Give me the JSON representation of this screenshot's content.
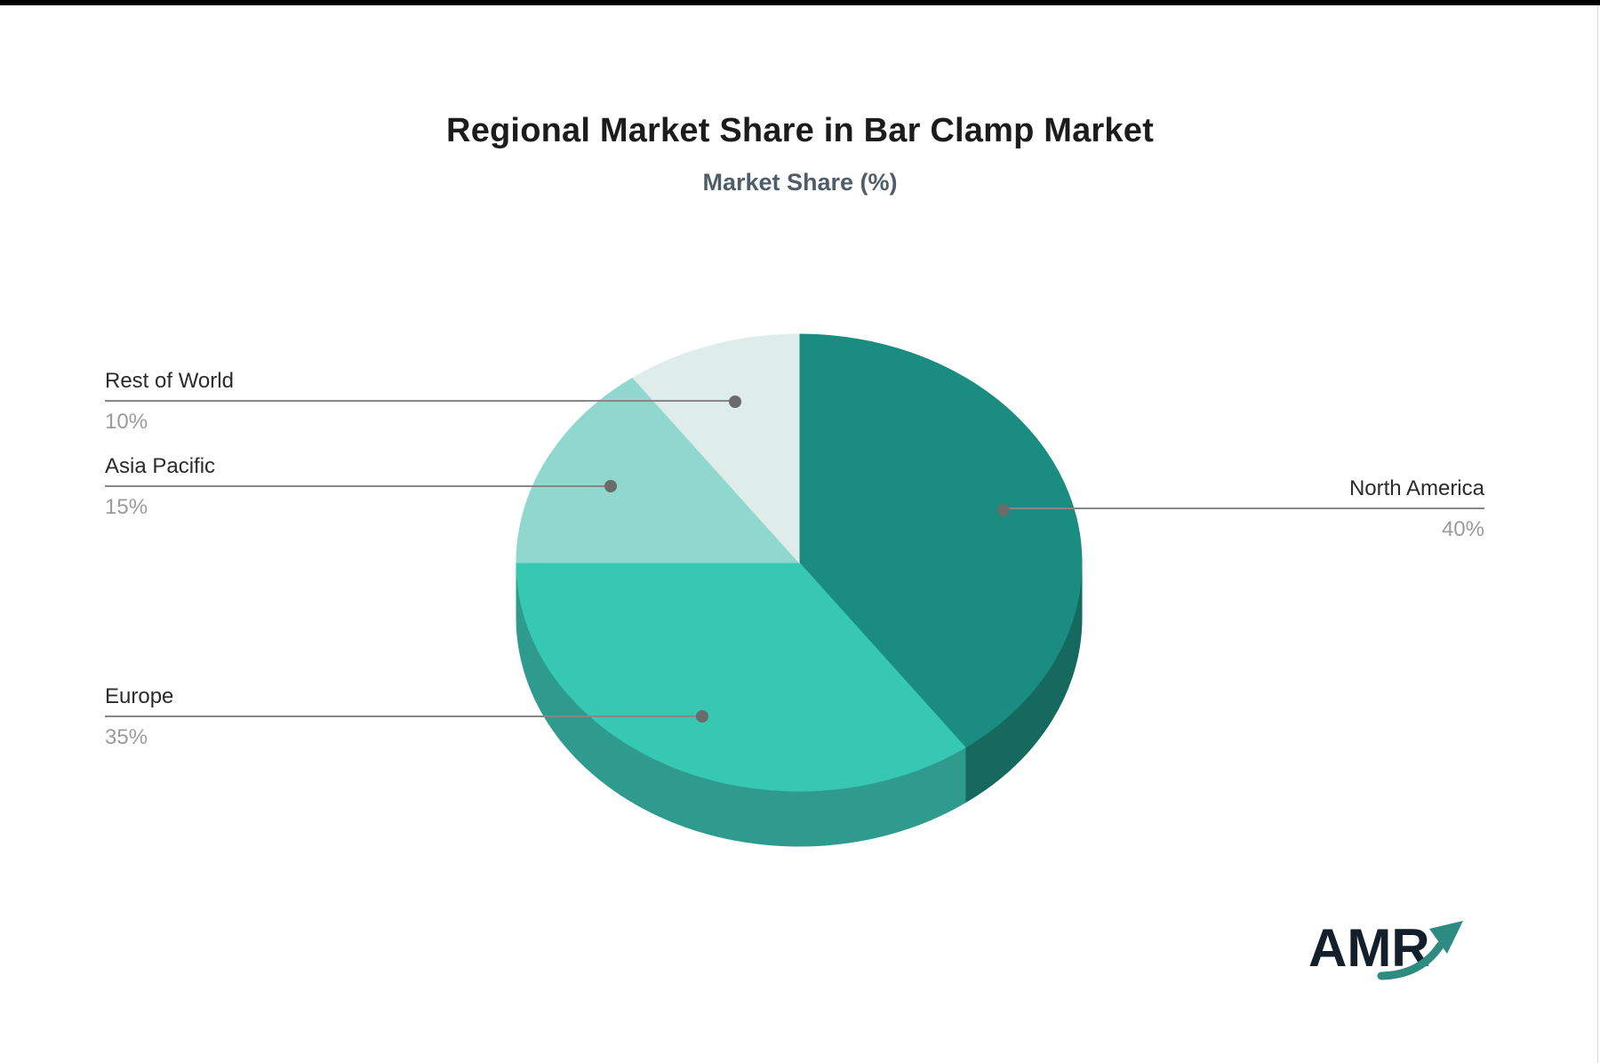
{
  "page": {
    "top_bar_color": "#000000",
    "background": "#ffffff"
  },
  "chart": {
    "title": "Regional Market Share in Bar Clamp Market",
    "subtitle": "Market Share (%)"
  },
  "chart_data": {
    "type": "pie",
    "style": "3d-pie",
    "title": "Regional Market Share in Bar Clamp Market",
    "subtitle": "Market Share (%)",
    "unit": "%",
    "start_angle_deg_from_top": 0,
    "direction": "clockwise",
    "legend_position": "callout-labels",
    "leader_line_color": "#878787",
    "leader_dot_color": "#6b6b6b",
    "label_color": "#2b2b2b",
    "value_color": "#9b9b9b",
    "slices": [
      {
        "label": "North America",
        "value": 40,
        "value_label": "40%",
        "color": "#1A8C80",
        "side_color": "#15695F",
        "callout_side": "right"
      },
      {
        "label": "Europe",
        "value": 35,
        "value_label": "35%",
        "color": "#37C8B4",
        "side_color": "#2E9B8E",
        "callout_side": "left"
      },
      {
        "label": "Asia Pacific",
        "value": 15,
        "value_label": "15%",
        "color": "#90D7CE",
        "side_color": "#79BDB4",
        "callout_side": "left"
      },
      {
        "label": "Rest of World",
        "value": 10,
        "value_label": "10%",
        "color": "#DFEDEA",
        "side_color": "#C4DAD6",
        "callout_side": "left"
      }
    ]
  },
  "logo": {
    "text": "AMR",
    "text_color": "#131F2A",
    "arrow_color": "#2D8B81"
  }
}
